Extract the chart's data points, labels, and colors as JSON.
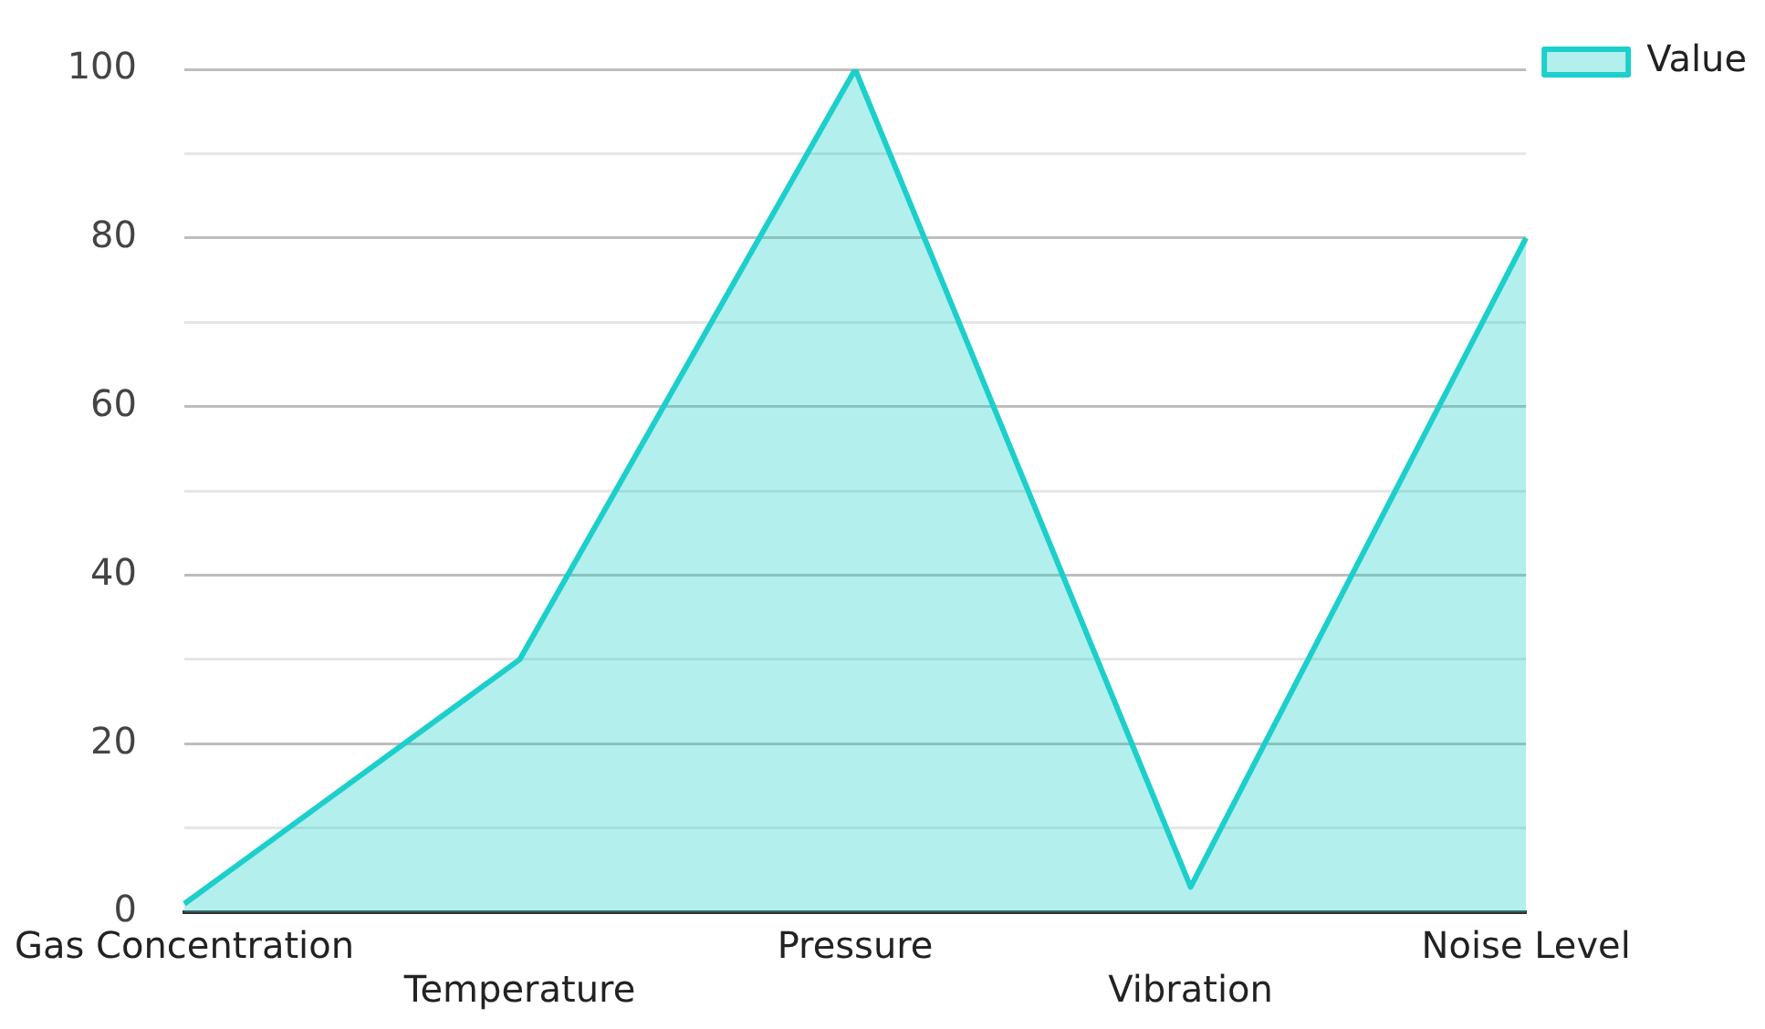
{
  "chart_data": {
    "type": "area",
    "categories": [
      "Gas Concentration",
      "Temperature",
      "Pressure",
      "Vibration",
      "Noise Level"
    ],
    "series": [
      {
        "name": "Value",
        "color": "#1ccfcb",
        "values": [
          1,
          30,
          100,
          3,
          80
        ]
      }
    ],
    "ylim": [
      0,
      100
    ],
    "yticks": [
      0,
      {
        "value": 10,
        "label": null
      },
      20,
      {
        "value": 30,
        "label": null
      },
      40,
      {
        "value": 50,
        "label": null
      },
      60,
      {
        "value": 70,
        "label": null
      },
      80,
      {
        "value": 90,
        "label": null
      },
      100
    ],
    "grid": "y",
    "legend": "top right",
    "marker": "none"
  }
}
